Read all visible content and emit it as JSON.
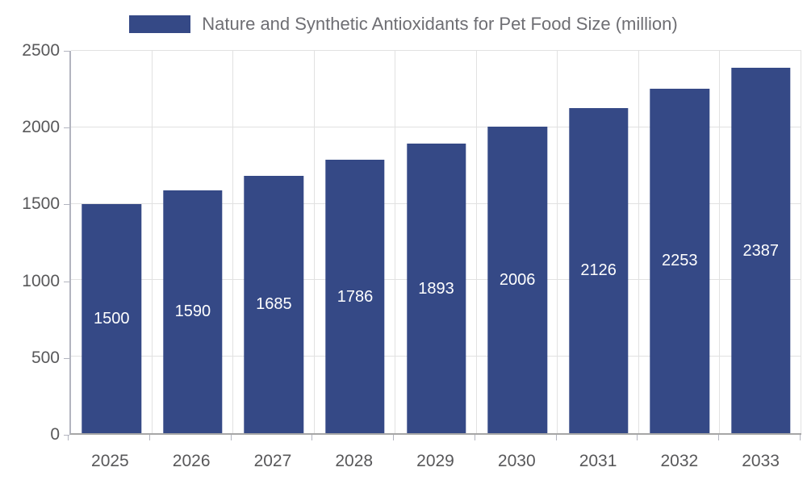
{
  "chart_data": {
    "type": "bar",
    "title": "Nature and Synthetic Antioxidants for Pet Food Size (million)",
    "categories": [
      "2025",
      "2026",
      "2027",
      "2028",
      "2029",
      "2030",
      "2031",
      "2032",
      "2033"
    ],
    "values": [
      1500,
      1590,
      1685,
      1786,
      1893,
      2006,
      2126,
      2253,
      2387
    ],
    "xlabel": "",
    "ylabel": "",
    "ylim": [
      0,
      2500
    ],
    "yticks": [
      0,
      500,
      1000,
      1500,
      2000,
      2500
    ],
    "grid": true,
    "legend_position": "top-center",
    "bar_color": "#354986",
    "value_label_color": "#ffffff",
    "axis_text_color": "#58585a",
    "legend_text_color": "#6e6e73",
    "gridline_color": "#e1e1e1"
  }
}
